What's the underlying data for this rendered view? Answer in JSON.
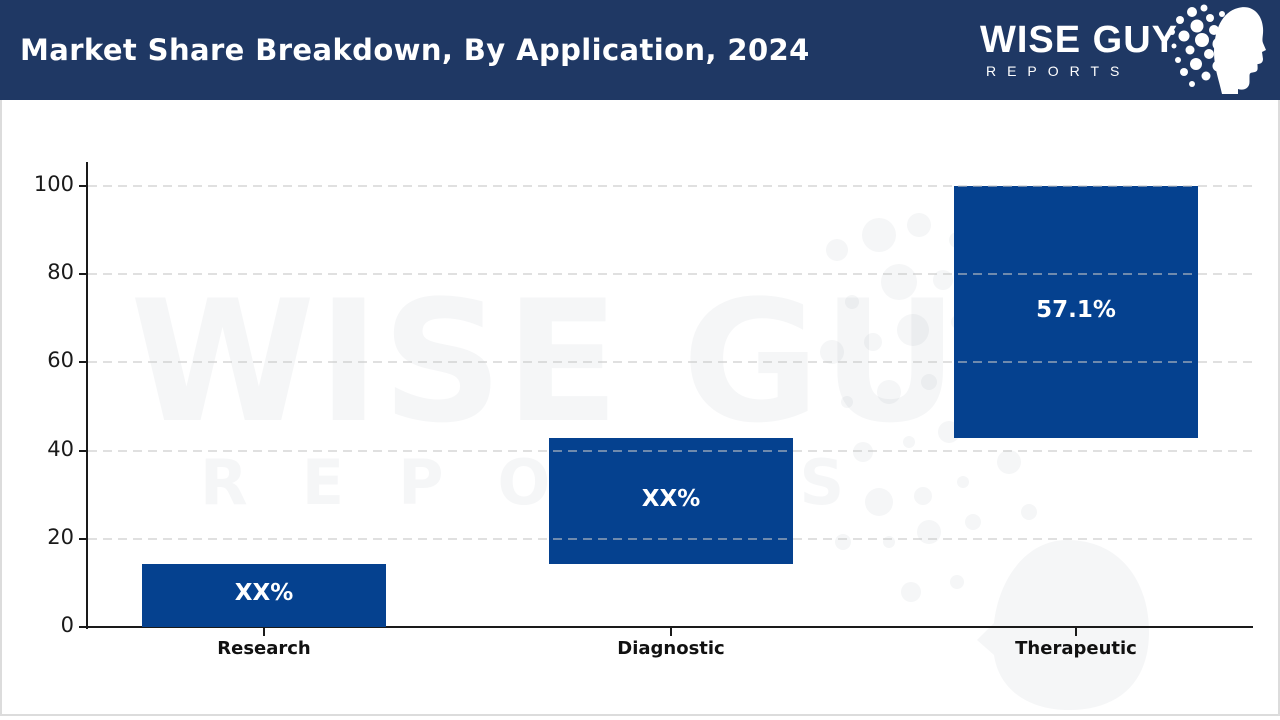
{
  "header": {
    "title": "Market Share Breakdown, By Application, 2024",
    "logo": {
      "line1": "WISE GUY",
      "line2": "REPORTS"
    }
  },
  "watermark": {
    "line1": "WISE GUY",
    "line2": "REPORTS"
  },
  "chart_data": {
    "type": "bar",
    "subtype": "waterfall-breakdown",
    "title": "Market Share Breakdown, By Application, 2024",
    "categories": [
      "Research",
      "Diagnostic",
      "Therapeutic"
    ],
    "values": [
      14.3,
      28.6,
      57.1
    ],
    "starts": [
      0,
      14.3,
      42.9
    ],
    "bar_labels": [
      "XX%",
      "XX%",
      "57.1%"
    ],
    "yticks": [
      0,
      20,
      40,
      60,
      80,
      100
    ],
    "ylim": [
      0,
      105
    ],
    "xlabel": "",
    "ylabel": "",
    "grid": "dashed-horizontal",
    "legend": "none",
    "colors": {
      "bar": "#05418f",
      "header_bg": "#1f3864",
      "axis": "#1a1a1a",
      "gridline": "#c6c6c6",
      "frame": "#dcdcdc",
      "bar_label_text": "#ffffff"
    }
  }
}
